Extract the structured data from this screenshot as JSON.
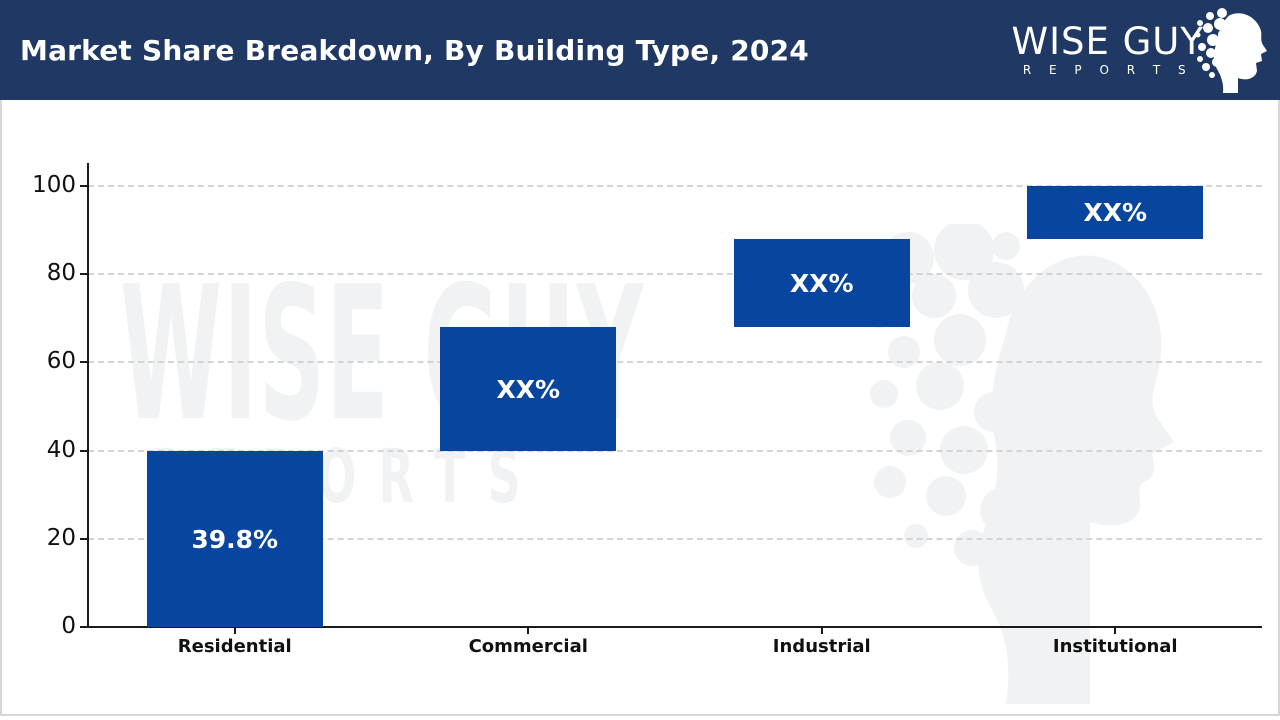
{
  "header": {
    "title": "Market Share Breakdown, By Building Type, 2024",
    "logo": {
      "name": "WISE GUY",
      "subtitle": "R E P O R T S"
    }
  },
  "watermark": {
    "line1": "WISE GUY",
    "line2": "REPORTS"
  },
  "colors": {
    "header_bg": "#1f3864",
    "bar": "#08459f",
    "bar_label": "#ffffff",
    "gridline": "#d4d4d4",
    "axis": "#1a1a1a",
    "watermark": "#f1f2f4",
    "page_border": "#d7d7d7"
  },
  "chart_data": {
    "type": "bar",
    "subtype": "waterfall",
    "title": "Market Share Breakdown, By Building Type, 2024",
    "categories": [
      "Residential",
      "Commercial",
      "Industrial",
      "Institutional"
    ],
    "segments": [
      {
        "category": "Residential",
        "start": 0,
        "end": 39.8,
        "label": "39.8%"
      },
      {
        "category": "Commercial",
        "start": 39.8,
        "end": 68,
        "label": "XX%"
      },
      {
        "category": "Industrial",
        "start": 68,
        "end": 88,
        "label": "XX%"
      },
      {
        "category": "Institutional",
        "start": 88,
        "end": 100,
        "label": "XX%"
      }
    ],
    "xlabel": "",
    "ylabel": "",
    "ylim": [
      0,
      100
    ],
    "yticks": [
      0,
      20,
      40,
      60,
      80,
      100
    ],
    "grid": "dashed-horizontal",
    "legend": "none",
    "notes": "Cumulative waterfall; only Residential value shown (39.8%), other segment labels masked as XX%; masked numeric extents estimated from bar positions."
  }
}
